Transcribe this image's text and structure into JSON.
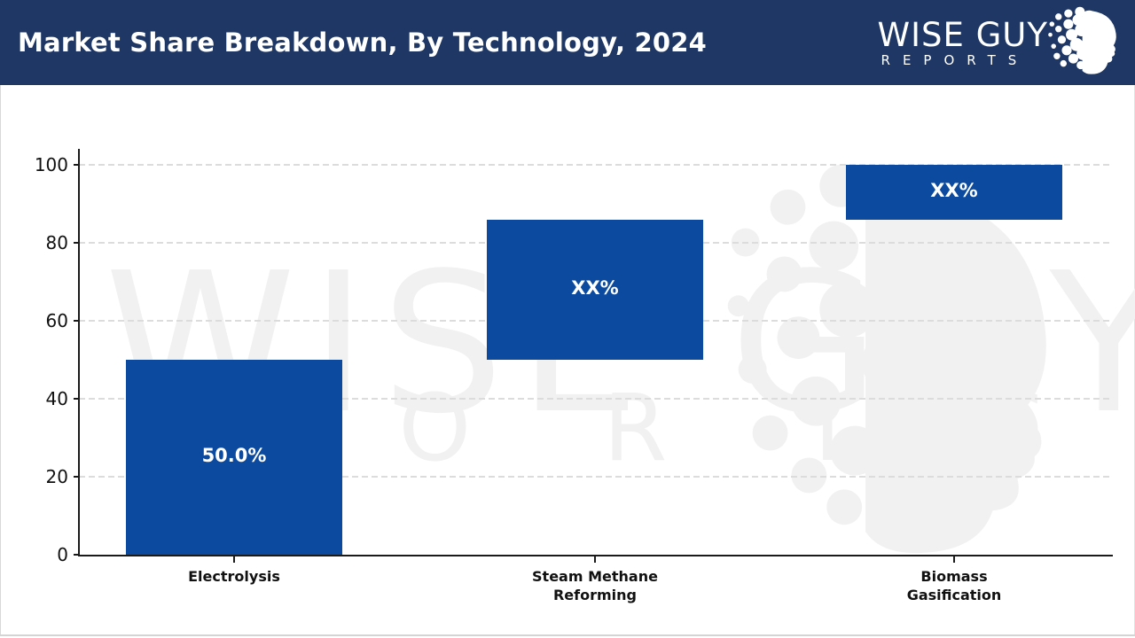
{
  "header": {
    "title": "Market Share Breakdown, By Technology, 2024",
    "bg_color": "#1f3765",
    "logo": {
      "line1": "WISE GUY",
      "line2": "REPORTS"
    }
  },
  "watermark": {
    "line1": "WISE GUY",
    "line2": "R O R T S"
  },
  "chart_data": {
    "type": "bar",
    "subtype": "waterfall",
    "title": "Market Share Breakdown, By Technology, 2024",
    "categories": [
      [
        "Electrolysis"
      ],
      [
        "Steam Methane",
        "Reforming"
      ],
      [
        "Biomass",
        "Gasification"
      ]
    ],
    "bars": [
      {
        "category": "Electrolysis",
        "start": 0,
        "end": 50,
        "label": "50.0%"
      },
      {
        "category": "Steam Methane Reforming",
        "start": 50,
        "end": 86,
        "label": "XX%"
      },
      {
        "category": "Biomass Gasification",
        "start": 86,
        "end": 100,
        "label": "XX%"
      }
    ],
    "yticks": [
      0,
      20,
      40,
      60,
      80,
      100
    ],
    "ylim": [
      0,
      104
    ],
    "xlabel": "",
    "ylabel": "",
    "grid": "horizontal-dashed",
    "legend": "none",
    "bar_color": "#0b4a9f",
    "bar_label_color": "#ffffff",
    "gridline_color": "#dcdcdc"
  }
}
